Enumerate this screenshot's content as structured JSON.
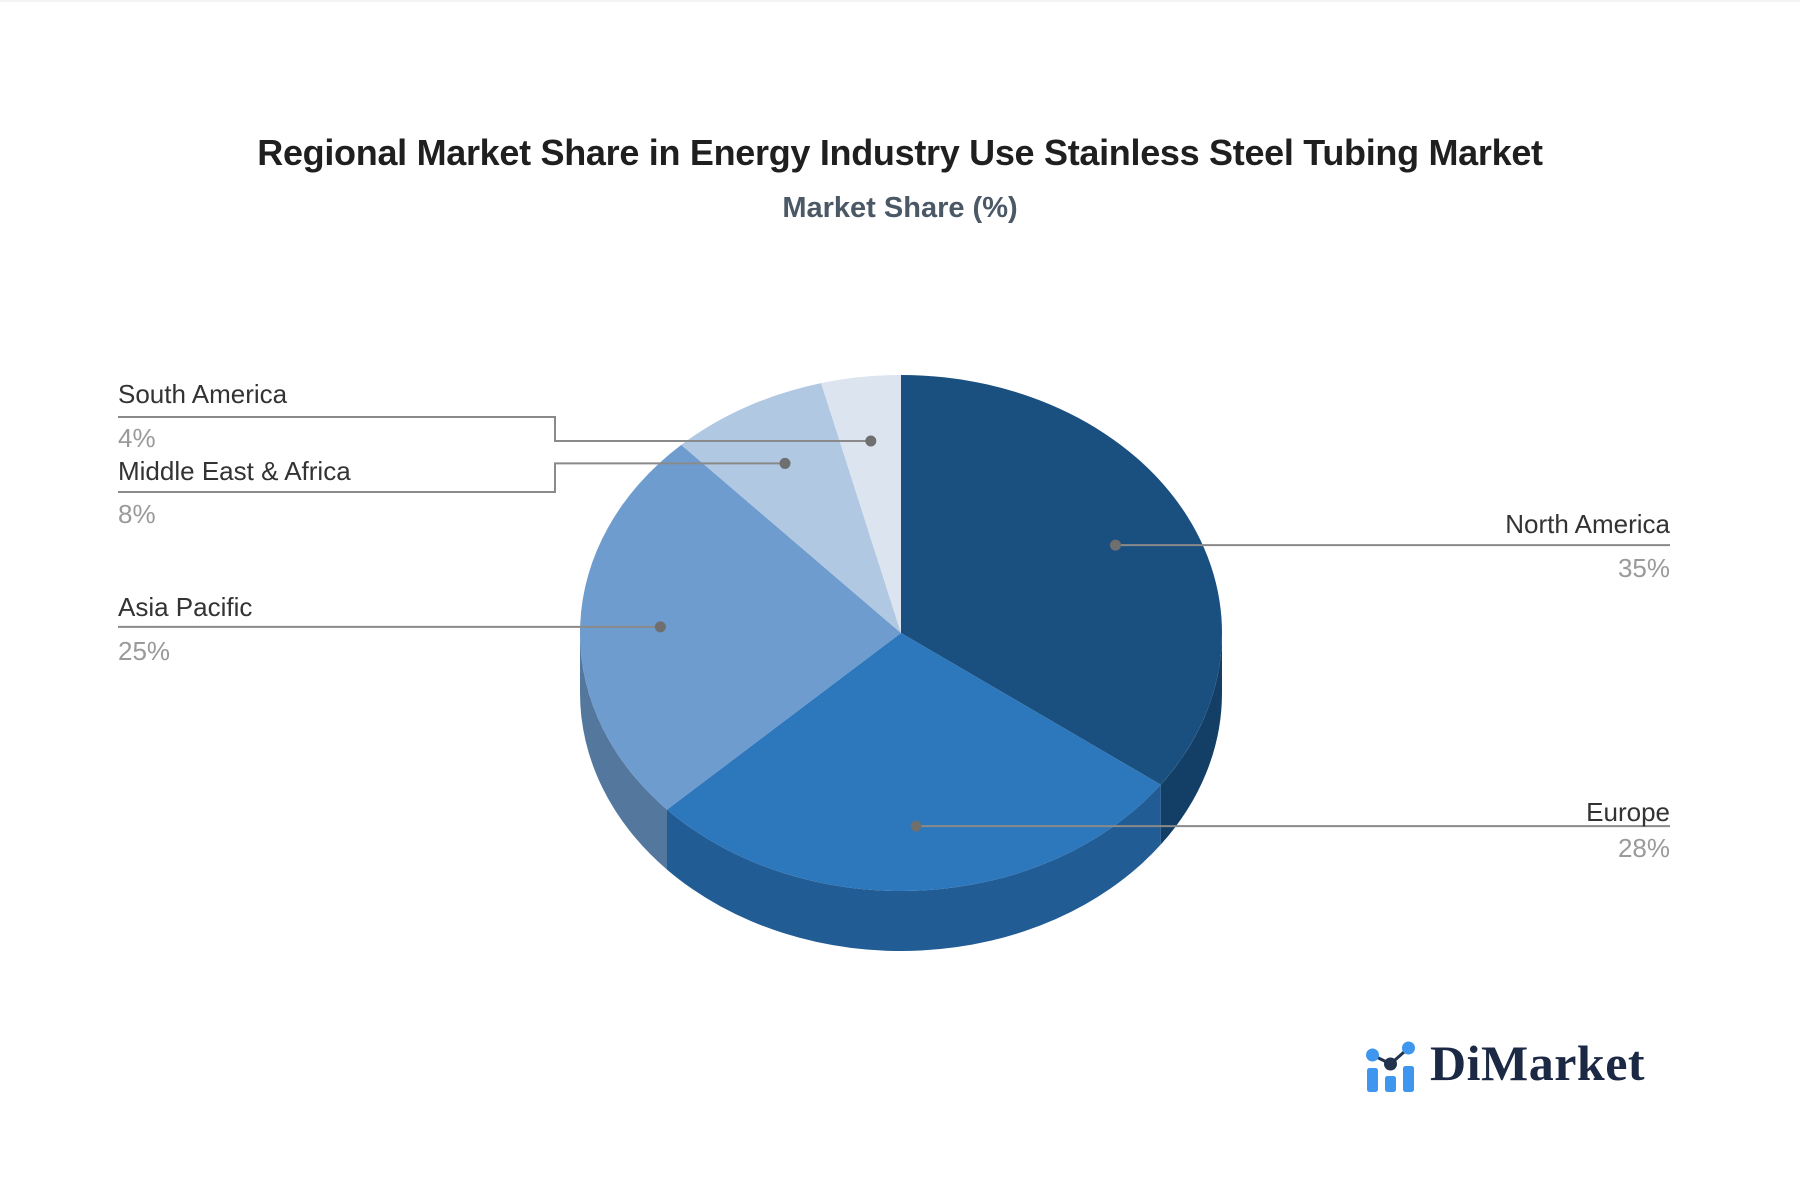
{
  "header": {
    "title": "Regional Market Share in Energy Industry Use Stainless Steel Tubing Market",
    "subtitle": "Market Share (%)"
  },
  "chart_data": {
    "type": "pie",
    "style": "3d",
    "title": "Regional Market Share in Energy Industry Use Stainless Steel Tubing Market",
    "subtitle": "Market Share (%)",
    "unit": "%",
    "direction": "clockwise",
    "start_angle_deg": 0,
    "legend_position": "callout-labels",
    "categories": [
      "North America",
      "Europe",
      "Asia Pacific",
      "Middle East & Africa",
      "South America"
    ],
    "values": [
      35,
      28,
      25,
      8,
      4
    ],
    "value_labels": [
      "35%",
      "28%",
      "25%",
      "8%",
      "4%"
    ],
    "colors": [
      "#1a5080",
      "#2d77bd",
      "#6f9cce",
      "#b0c8e2",
      "#dce4f0"
    ],
    "side_colors": [
      "#133f66",
      "#215c94",
      "#54779e",
      "#8aa3c2",
      "#b9c4d6"
    ],
    "callout_line_color": "#8a8a8a",
    "callout_dot_color": "#6f6f6f",
    "label_color": "#333333",
    "value_color": "#9a9a9a"
  },
  "branding": {
    "logo_text": "DiMarket",
    "logo_icon": "bar-chart-logo-icon",
    "logo_text_color": "#1b2945",
    "logo_accent_color": "#3e96ef",
    "logo_dark_color": "#23334e"
  }
}
